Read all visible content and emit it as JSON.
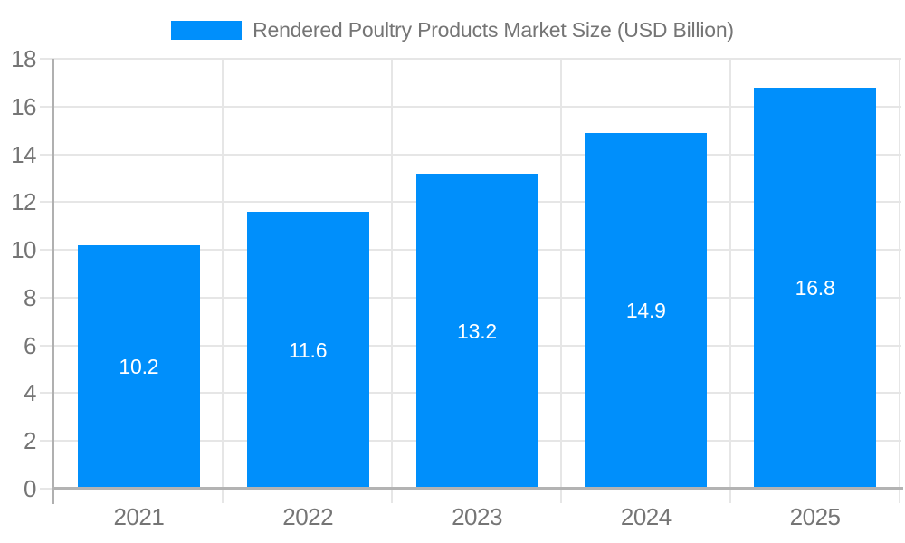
{
  "chart_data": {
    "type": "bar",
    "title": "Rendered Poultry Products Market Size (USD Billion)",
    "categories": [
      "2021",
      "2022",
      "2023",
      "2024",
      "2025"
    ],
    "values": [
      10.2,
      11.6,
      13.2,
      14.9,
      16.8
    ],
    "value_labels": [
      "10.2",
      "11.6",
      "13.2",
      "14.9",
      "16.8"
    ],
    "xlabel": "",
    "ylabel": "",
    "ylim": [
      0,
      18
    ],
    "yticks": [
      0,
      2,
      4,
      6,
      8,
      10,
      12,
      14,
      16,
      18
    ],
    "grid": true,
    "legend_position": "top",
    "colors": {
      "bar": "#008FFB",
      "value_label": "#ffffff",
      "axis_text": "#757575",
      "legend_text": "#757575",
      "gridline": "#e6e6e6",
      "axis_line": "#b0b0b0",
      "x_axis_line": "#b3b3b3",
      "background": "#ffffff"
    }
  }
}
